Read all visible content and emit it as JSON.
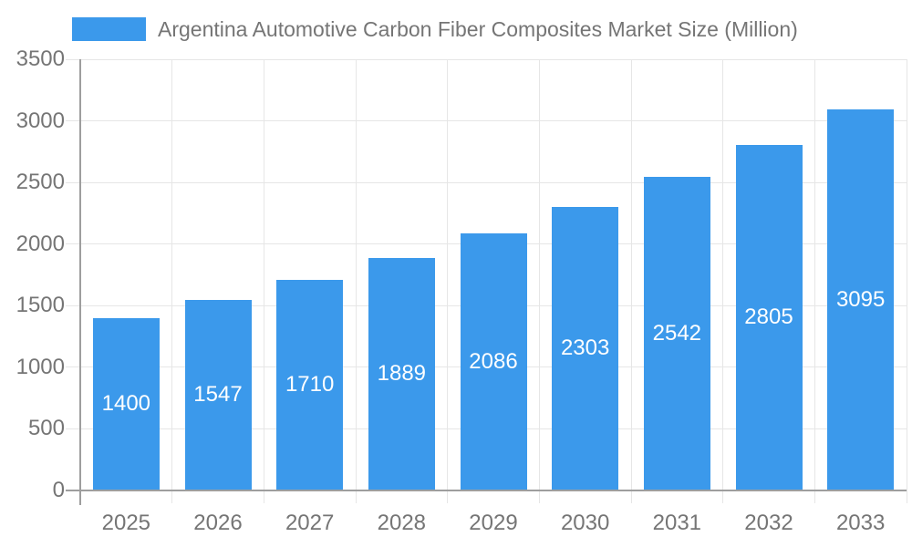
{
  "legend": {
    "position": "top-center",
    "swatch_icon": "series-color-swatch"
  },
  "colors": {
    "bar": "#3B99EB",
    "bar_label_text": "#FFFFFF",
    "axis_text": "#757575",
    "title_text": "#757575",
    "grid": "#E6E6E6",
    "axis_line": "#9E9E9E",
    "background": "#FFFFFF"
  },
  "chart_data": {
    "type": "bar",
    "title": "Argentina Automotive Carbon Fiber Composites Market Size (Million)",
    "categories": [
      "2025",
      "2026",
      "2027",
      "2028",
      "2029",
      "2030",
      "2031",
      "2032",
      "2033"
    ],
    "values": [
      1400,
      1547,
      1710,
      1889,
      2086,
      2303,
      2542,
      2805,
      3095
    ],
    "series_name": "Argentina Automotive Carbon Fiber Composites Market Size (Million)",
    "xlabel": "",
    "ylabel": "",
    "ylim": [
      0,
      3500
    ],
    "ytick_step": 500,
    "yticks": [
      0,
      500,
      1000,
      1500,
      2000,
      2500,
      3000,
      3500
    ],
    "grid_horizontal": true,
    "grid_vertical_category_boundaries": true,
    "bar_labels_inside": true,
    "legend_position": "top-center"
  }
}
